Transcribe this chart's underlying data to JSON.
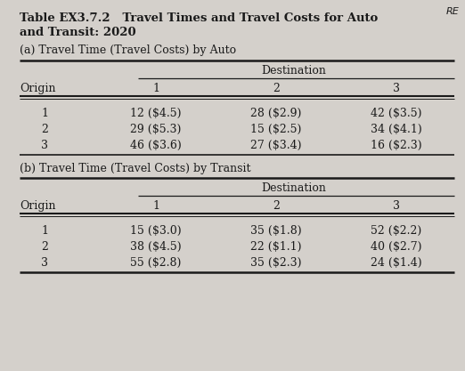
{
  "title_line1": "Table EX3.7.2   Travel Times and Travel Costs for Auto",
  "title_line2": "and Transit: 2020",
  "watermark": "RE",
  "section_a_label": "(a) Travel Time (Travel Costs) by Auto",
  "section_b_label": "(b) Travel Time (Travel Costs) by Transit",
  "destination_label": "Destination",
  "origin_label": "Origin",
  "col_headers": [
    "1",
    "2",
    "3"
  ],
  "row_headers": [
    "1",
    "2",
    "3"
  ],
  "auto_data": [
    [
      "12 ($4.5)",
      "28 ($2.9)",
      "42 ($3.5)"
    ],
    [
      "29 ($5.3)",
      "15 ($2.5)",
      "34 ($4.1)"
    ],
    [
      "46 ($3.6)",
      "27 ($3.4)",
      "16 ($2.3)"
    ]
  ],
  "transit_data": [
    [
      "15 ($3.0)",
      "35 ($1.8)",
      "52 ($2.2)"
    ],
    [
      "38 ($4.5)",
      "22 ($1.1)",
      "40 ($2.7)"
    ],
    [
      "55 ($2.8)",
      "35 ($2.3)",
      "24 ($1.4)"
    ]
  ],
  "bg_color": "#d4d0cb",
  "text_color": "#1a1a1a",
  "font_size_title": 9.5,
  "font_size_body": 9.0,
  "font_size_section": 9.0
}
